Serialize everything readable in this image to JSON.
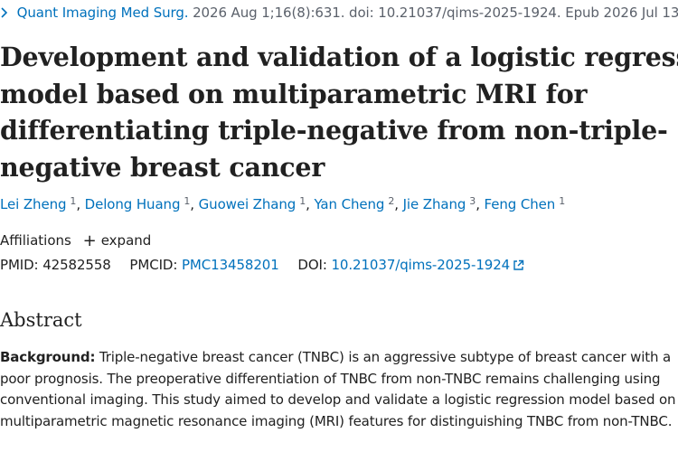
{
  "citation": {
    "journal": "Quant Imaging Med Surg.",
    "details": "2026 Aug 1;16(8):631. doi: 10.21037/qims-2025-1924. Epub 2026 Jul 13."
  },
  "title_lines": [
    "Development and validation of a logistic regression",
    "model based on multiparametric MRI for",
    "differentiating triple-negative from non-triple-",
    "negative breast cancer"
  ],
  "authors": [
    {
      "name": "Lei Zheng",
      "aff": "1"
    },
    {
      "name": "Delong Huang",
      "aff": "1"
    },
    {
      "name": "Guowei Zhang",
      "aff": "1"
    },
    {
      "name": "Yan Cheng",
      "aff": "2"
    },
    {
      "name": "Jie Zhang",
      "aff": "3"
    },
    {
      "name": "Feng Chen",
      "aff": "1"
    }
  ],
  "affiliations": {
    "label": "Affiliations",
    "expand_label": "expand"
  },
  "ids": {
    "pmid_label": "PMID:",
    "pmid": "42582558",
    "pmcid_label": "PMCID:",
    "pmcid": "PMC13458201",
    "doi_label": "DOI:",
    "doi": "10.21037/qims-2025-1924"
  },
  "abstract": {
    "heading": "Abstract",
    "background_label": "Background:",
    "lines": [
      " Triple-negative breast cancer (TNBC) is an aggressive subtype of breast cancer with a",
      "poor prognosis. The preoperative differentiation of TNBC from non-TNBC remains challenging using",
      "conventional imaging. This study aimed to develop and validate a logistic regression model based on",
      "multiparametric magnetic resonance imaging (MRI) features for distinguishing TNBC from non-TNBC."
    ]
  },
  "colors": {
    "link": "#0071bc",
    "text": "#212121",
    "muted": "#5b616b"
  },
  "icons": {
    "journal_chevron": "chevron-right-icon",
    "expand": "plus-icon",
    "doi_external": "external-link-icon"
  }
}
